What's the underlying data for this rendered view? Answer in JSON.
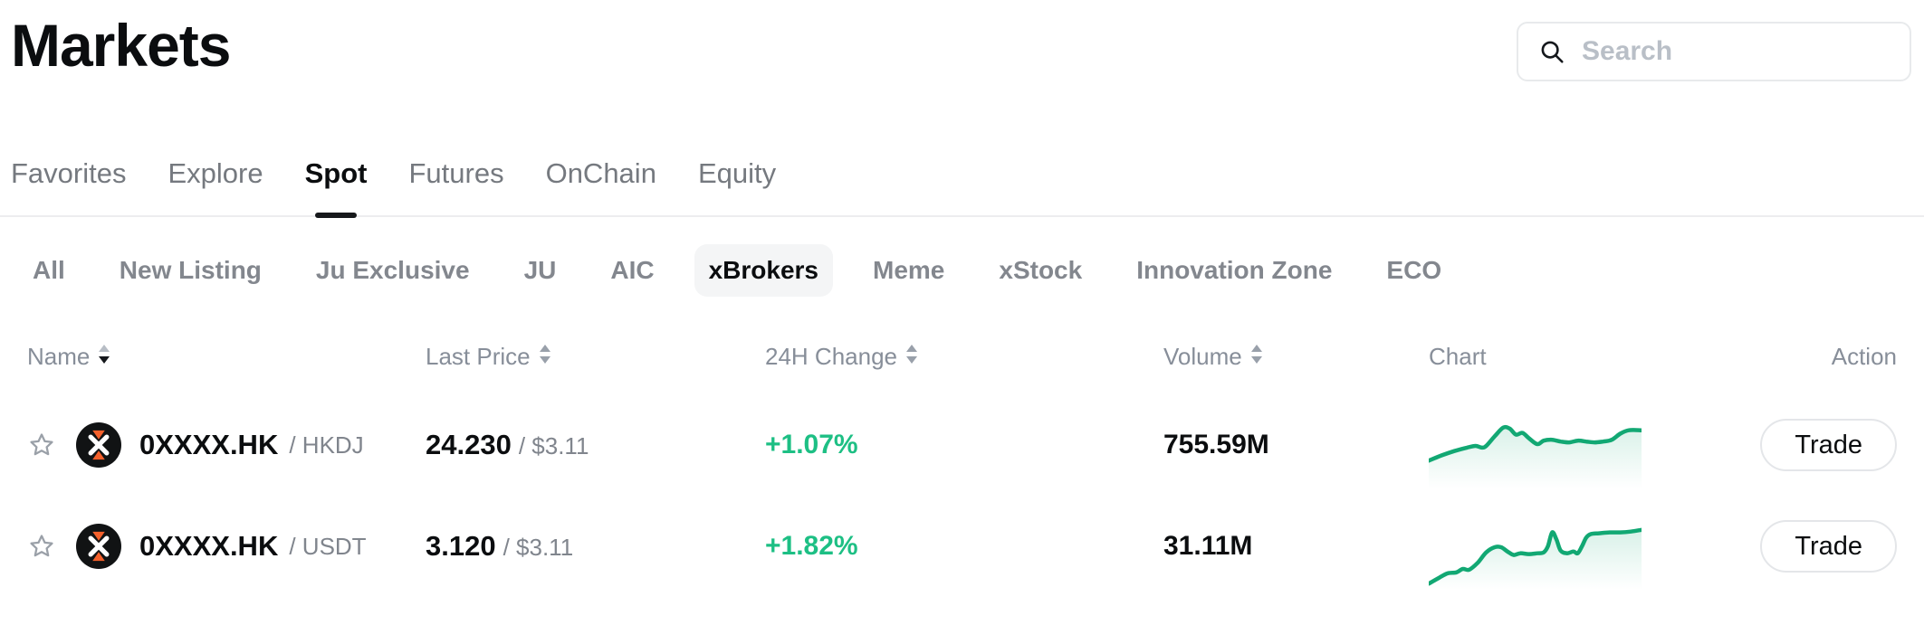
{
  "page": {
    "title": "Markets"
  },
  "search": {
    "placeholder": "Search"
  },
  "tabs": [
    {
      "label": "Favorites",
      "active": false
    },
    {
      "label": "Explore",
      "active": false
    },
    {
      "label": "Spot",
      "active": true
    },
    {
      "label": "Futures",
      "active": false
    },
    {
      "label": "OnChain",
      "active": false
    },
    {
      "label": "Equity",
      "active": false
    }
  ],
  "filters": [
    {
      "label": "All",
      "active": false
    },
    {
      "label": "New Listing",
      "active": false
    },
    {
      "label": "Ju Exclusive",
      "active": false
    },
    {
      "label": "JU",
      "active": false
    },
    {
      "label": "AIC",
      "active": false
    },
    {
      "label": "xBrokers",
      "active": true
    },
    {
      "label": "Meme",
      "active": false
    },
    {
      "label": "xStock",
      "active": false
    },
    {
      "label": "Innovation Zone",
      "active": false
    },
    {
      "label": "ECO",
      "active": false
    }
  ],
  "table": {
    "columns": [
      {
        "label": "Name",
        "sortable": true,
        "sort": "desc"
      },
      {
        "label": "Last Price",
        "sortable": true,
        "sort": "none"
      },
      {
        "label": "24H Change",
        "sortable": true,
        "sort": "none"
      },
      {
        "label": "Volume",
        "sortable": true,
        "sort": "none"
      },
      {
        "label": "Chart",
        "sortable": false,
        "sort": "none"
      },
      {
        "label": "Action",
        "sortable": false,
        "sort": "none"
      }
    ],
    "rows": [
      {
        "symbol": "0XXXX.HK",
        "pair": "/ HKDJ",
        "price": "24.230",
        "price_usd": "/ $3.11",
        "change": "+1.07%",
        "change_direction": "up",
        "volume": "755.59M",
        "action_label": "Trade",
        "spark": [
          [
            0,
            68
          ],
          [
            6,
            62
          ],
          [
            12,
            57
          ],
          [
            18,
            53
          ],
          [
            22,
            51
          ],
          [
            25,
            53
          ],
          [
            27,
            51
          ],
          [
            31,
            40
          ],
          [
            35,
            30
          ],
          [
            38,
            31
          ],
          [
            41,
            38
          ],
          [
            44,
            36
          ],
          [
            47,
            42
          ],
          [
            51,
            49
          ],
          [
            54,
            45
          ],
          [
            58,
            44
          ],
          [
            62,
            46
          ],
          [
            66,
            47
          ],
          [
            70,
            45
          ],
          [
            74,
            46
          ],
          [
            78,
            47
          ],
          [
            82,
            46
          ],
          [
            86,
            44
          ],
          [
            90,
            37
          ],
          [
            94,
            33
          ],
          [
            100,
            33
          ]
        ]
      },
      {
        "symbol": "0XXXX.HK",
        "pair": "/ USDT",
        "price": "3.120",
        "price_usd": "/ $3.11",
        "change": "+1.82%",
        "change_direction": "up",
        "volume": "31.11M",
        "action_label": "Trade",
        "spark": [
          [
            0,
            93
          ],
          [
            5,
            86
          ],
          [
            9,
            81
          ],
          [
            13,
            80
          ],
          [
            16,
            76
          ],
          [
            19,
            77
          ],
          [
            23,
            69
          ],
          [
            27,
            57
          ],
          [
            31,
            51
          ],
          [
            34,
            51
          ],
          [
            37,
            56
          ],
          [
            40,
            60
          ],
          [
            43,
            58
          ],
          [
            47,
            59
          ],
          [
            51,
            58
          ],
          [
            54,
            57
          ],
          [
            56,
            50
          ],
          [
            58,
            34
          ],
          [
            60,
            42
          ],
          [
            62,
            55
          ],
          [
            65,
            58
          ],
          [
            68,
            56
          ],
          [
            70,
            58
          ],
          [
            72,
            50
          ],
          [
            74,
            40
          ],
          [
            76,
            36
          ],
          [
            80,
            35
          ],
          [
            85,
            34
          ],
          [
            90,
            34
          ],
          [
            95,
            33
          ],
          [
            100,
            31
          ]
        ]
      }
    ]
  },
  "colors": {
    "positive": "#1dbf84",
    "spark_line": "#12a873",
    "sort_inactive": "#99a0aa",
    "sort_active": "#15181c",
    "sort_faded": "#b7bdc5",
    "coin_bg": "#111314",
    "coin_accent": "#f4602b"
  },
  "icons": {
    "search": "magnifier",
    "favorite": "star-outline",
    "coin": "x-logo-black-circle",
    "sort": "up-down-triangles"
  }
}
